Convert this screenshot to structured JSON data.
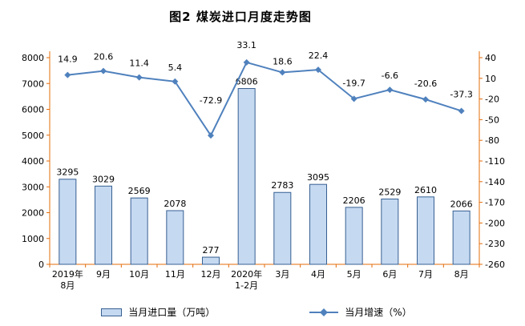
{
  "chart_data": {
    "type": "combo",
    "subtypes": [
      "bar",
      "line"
    ],
    "title": "图2 煤炭进口月度走势图",
    "categories": [
      "2019年\n8月",
      "9月",
      "10月",
      "11月",
      "12月",
      "2020年\n1-2月",
      "3月",
      "4月",
      "5月",
      "6月",
      "7月",
      "8月"
    ],
    "series": [
      {
        "name": "当月进口量（万吨）",
        "type": "bar",
        "axis": "left",
        "values": [
          3295,
          3029,
          2569,
          2078,
          277,
          6806,
          2783,
          3095,
          2206,
          2529,
          2610,
          2066
        ]
      },
      {
        "name": "当月增速（%）",
        "type": "line",
        "axis": "right",
        "values": [
          14.9,
          20.6,
          11.4,
          5.4,
          -72.9,
          33.1,
          18.6,
          22.4,
          -19.7,
          -6.6,
          -20.6,
          -37.3
        ]
      }
    ],
    "left_axis": {
      "min": 0,
      "max": 8000,
      "step": 1000
    },
    "right_axis": {
      "min": -260,
      "max": 40,
      "step": 30
    },
    "line_label_dy": [
      16,
      14,
      14,
      14,
      40,
      18,
      10,
      14,
      16,
      14,
      16,
      17
    ],
    "grid": false,
    "legend_position": "bottom",
    "colors": {
      "axis": "#e46c0a",
      "bar_fill": "#c5d9f1",
      "bar_border": "#376092",
      "line": "#4f81bd",
      "text": "#000000"
    }
  }
}
